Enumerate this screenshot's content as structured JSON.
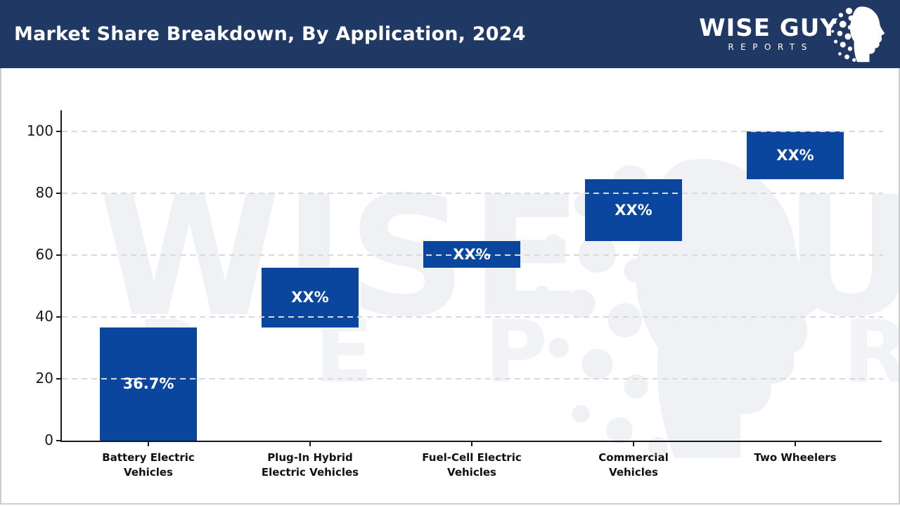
{
  "header": {
    "title": "Market Share Breakdown, By Application, 2024",
    "bg_color": "#203864",
    "logo": {
      "line1": "WISE GUY",
      "line2": "REPORTS",
      "head_icon": "dotted-head-profile"
    }
  },
  "watermark": {
    "line1": "WISE GUY",
    "line2": "R E P O R T S"
  },
  "chart_data": {
    "type": "bar",
    "subtype": "waterfall",
    "title": "Market Share Breakdown, By Application, 2024",
    "categories": [
      [
        "Battery Electric",
        "Vehicles"
      ],
      [
        "Plug-In Hybrid",
        "Electric Vehicles"
      ],
      [
        "Fuel-Cell Electric",
        "Vehicles"
      ],
      [
        "Commercial",
        "Vehicles"
      ],
      [
        "Two Wheelers"
      ]
    ],
    "segments": [
      {
        "start": 0,
        "end": 36.7,
        "label": "36.7%"
      },
      {
        "start": 36.7,
        "end": 55.9,
        "label": "XX%"
      },
      {
        "start": 55.9,
        "end": 64.5,
        "label": "XX%"
      },
      {
        "start": 64.5,
        "end": 84.5,
        "label": "XX%"
      },
      {
        "start": 84.5,
        "end": 100,
        "label": "XX%"
      }
    ],
    "ylim": [
      0,
      100
    ],
    "yticks": [
      0,
      20,
      40,
      60,
      80,
      100
    ],
    "grid": "horizontal-dashed",
    "legend": "none",
    "bar_color": "#0b469e",
    "bar_label_color": "#ffffff",
    "grid_color": "#d9d9d9",
    "axis_color": "#1a1a1a"
  }
}
